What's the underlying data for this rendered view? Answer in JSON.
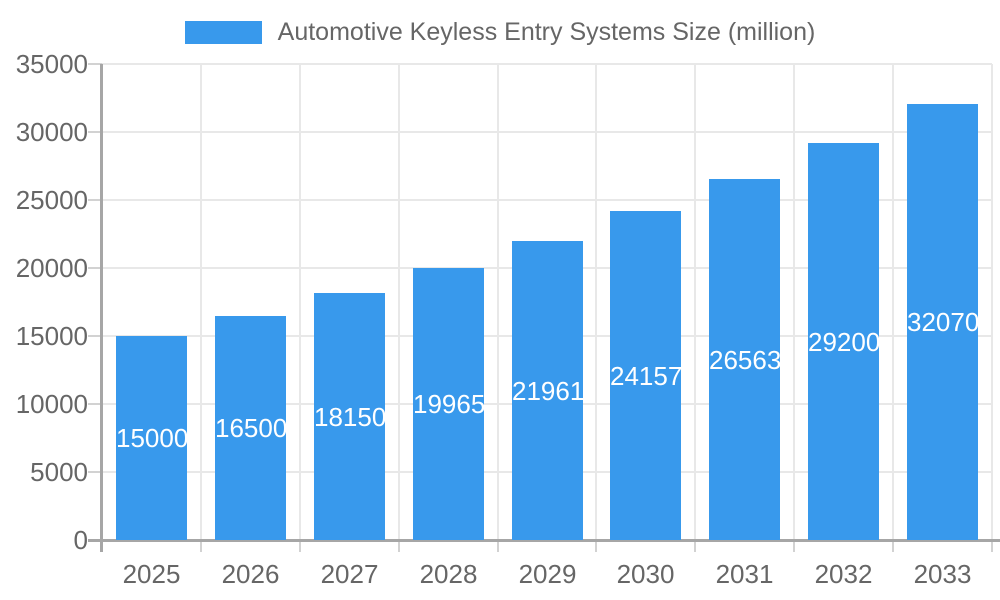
{
  "chart_data": {
    "type": "bar",
    "title": "Automotive Keyless Entry Systems Size (million)",
    "categories": [
      "2025",
      "2026",
      "2027",
      "2028",
      "2029",
      "2030",
      "2031",
      "2032",
      "2033"
    ],
    "values": [
      15000,
      16500,
      18150,
      19965,
      21961,
      24157,
      26563,
      29200,
      32070
    ],
    "value_labels": [
      "15000",
      "16500",
      "18150",
      "19965",
      "21961",
      "24157",
      "26563",
      "29200",
      "32070"
    ],
    "xlabel": "",
    "ylabel": "",
    "ylim": [
      0,
      35000
    ],
    "yticks": [
      0,
      5000,
      10000,
      15000,
      20000,
      25000,
      30000,
      35000
    ],
    "ytick_labels": [
      "0",
      "5000",
      "10000",
      "15000",
      "20000",
      "25000",
      "30000",
      "35000"
    ],
    "grid": "on",
    "legend_position": "top-center",
    "colors": {
      "bar": "#3899EC",
      "value_label_text": "#ffffff",
      "axis_line": "#a6a6a6",
      "gridline": "#e8e8e8",
      "tick": "#d2d2d2",
      "text": "#666666",
      "background": "#ffffff"
    }
  }
}
